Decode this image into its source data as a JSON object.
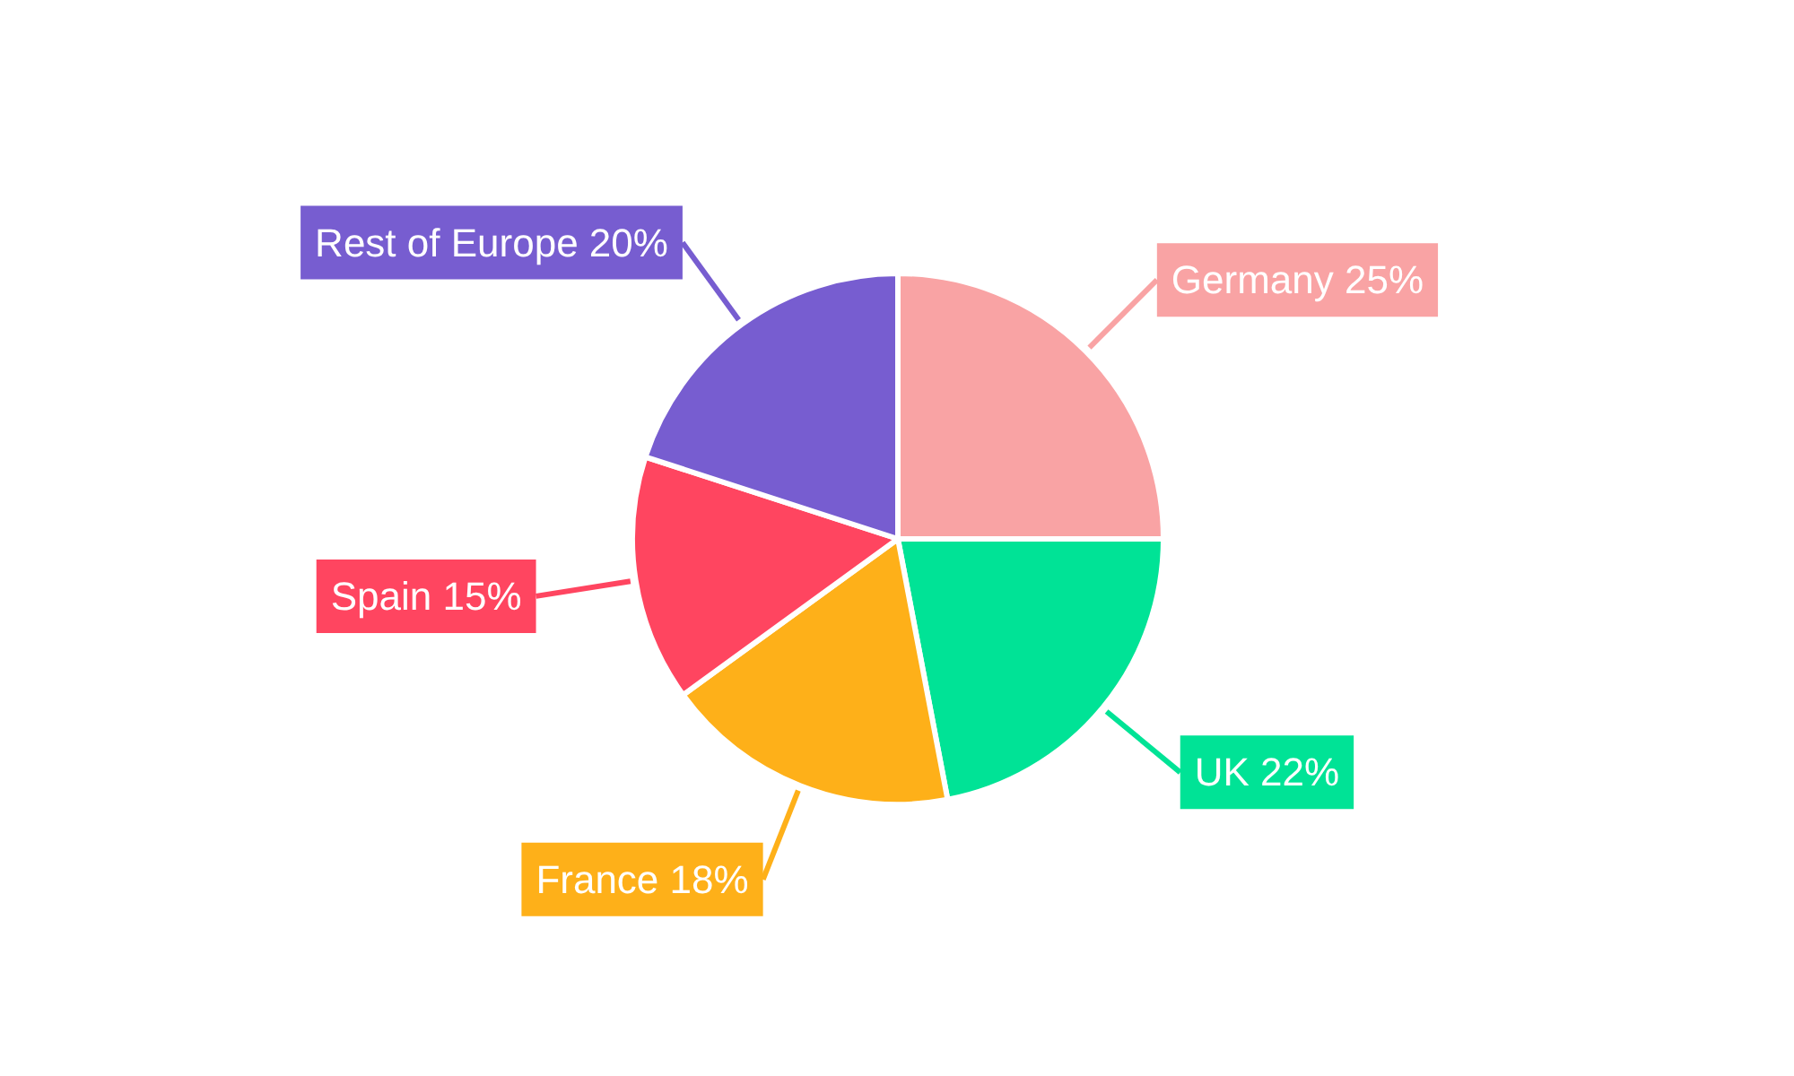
{
  "chart_data": {
    "type": "pie",
    "categories": [
      "Germany",
      "UK",
      "France",
      "Spain",
      "Rest of Europe"
    ],
    "values": [
      25,
      22,
      18,
      15,
      20
    ],
    "value_labels": [
      "25%",
      "22%",
      "18%",
      "15%",
      "20%"
    ],
    "colors": [
      "#f9a3a4",
      "#00e396",
      "#feb019",
      "#ff4560",
      "#775dd0"
    ]
  }
}
